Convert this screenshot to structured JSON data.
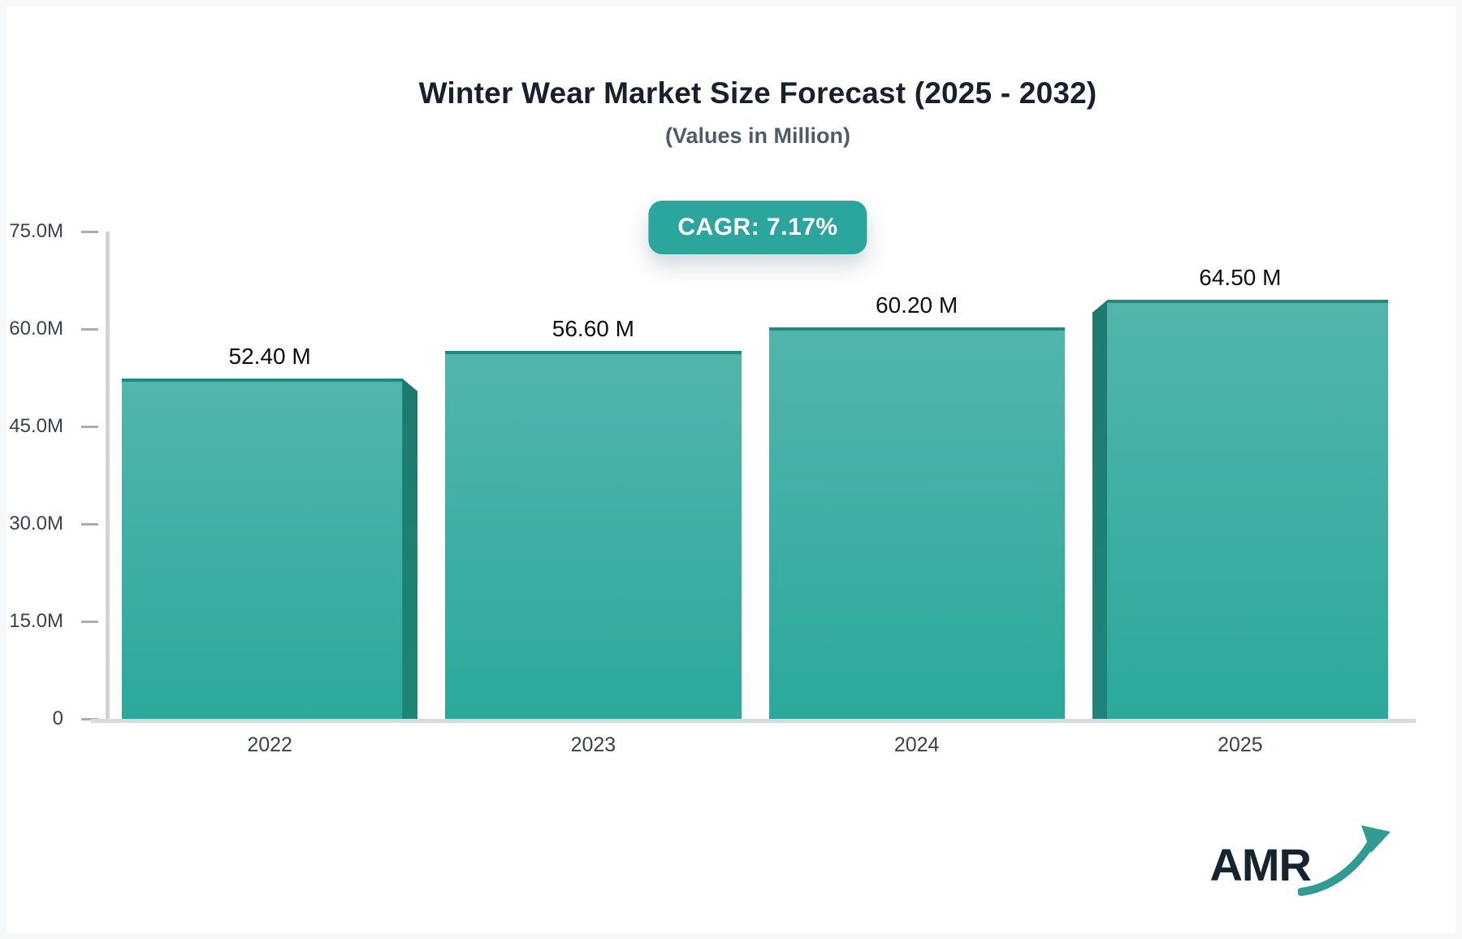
{
  "header": {
    "title": "Winter Wear Market Size Forecast (2025 - 2032)",
    "subtitle": "(Values in Million)"
  },
  "badge": {
    "label": "CAGR: 7.17%"
  },
  "logo": {
    "text": "AMR",
    "arrow_icon": "growth-arrow-icon"
  },
  "chart_data": {
    "type": "bar",
    "title": "Winter Wear Market Size Forecast (2025 - 2032)",
    "subtitle": "(Values in Million)",
    "cagr_label": "CAGR: 7.17%",
    "categories": [
      "2022",
      "2023",
      "2024",
      "2025"
    ],
    "values": [
      52.4,
      56.6,
      60.2,
      64.5
    ],
    "bar_labels": [
      "52.40 M",
      "56.60 M",
      "60.20 M",
      "64.50 M"
    ],
    "ylabel": "",
    "xlabel": "",
    "ylim": [
      0,
      75
    ],
    "yticks": [
      "75.0M",
      "60.0M",
      "45.0M",
      "30.0M",
      "15.0M",
      "0"
    ],
    "grid": false,
    "legend": false,
    "style_notes": "3D side panels on first and last bars",
    "colors": {
      "bar-top": "#52b5ab",
      "bar-bottom": "#2aa99a",
      "bar-border": "#1f8a7f",
      "bar-side": "#1e7a6e",
      "badge-bg": "#2aa69c",
      "axis-line": "#cfd3da",
      "baseline": "#d7dade",
      "tick": "#a7adb5",
      "title-text": "#18202b",
      "subtitle-text": "#4f5b68",
      "axis-text": "#39424e",
      "value-text": "#0c0e10",
      "logo-text": "#15242d",
      "logo-arrow": "#2e9c92"
    }
  }
}
